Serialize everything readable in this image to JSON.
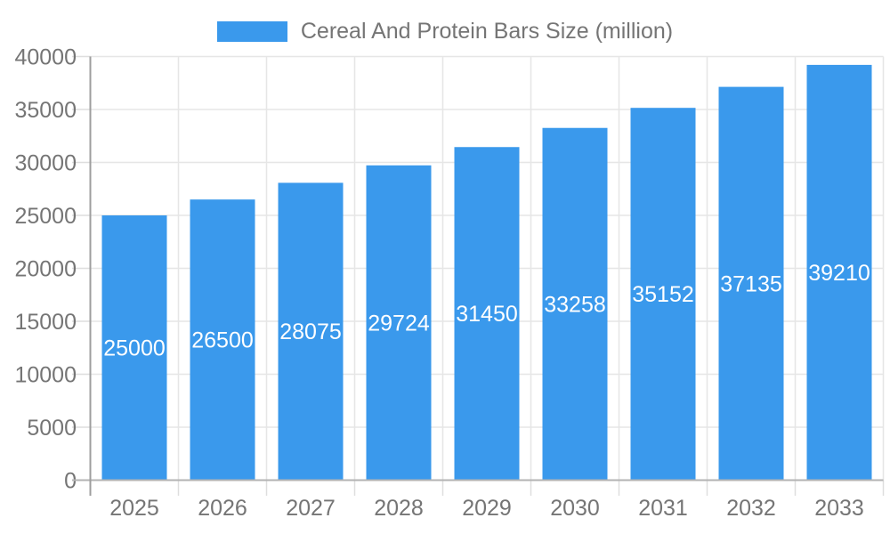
{
  "chart_data": {
    "type": "bar",
    "title": "Cereal And Protein Bars Size (million)",
    "categories": [
      "2025",
      "2026",
      "2027",
      "2028",
      "2029",
      "2030",
      "2031",
      "2032",
      "2033"
    ],
    "series": [
      {
        "name": "Cereal And Protein Bars Size (million)",
        "values": [
          25000,
          26500,
          28075,
          29724,
          31450,
          33258,
          35152,
          37135,
          39210
        ]
      }
    ],
    "xlabel": "",
    "ylabel": "",
    "ylim": [
      0,
      40000
    ],
    "yticks": [
      0,
      5000,
      10000,
      15000,
      20000,
      25000,
      30000,
      35000,
      40000
    ],
    "grid": true,
    "legend_position": "top-center",
    "value_labels": "inside-center",
    "colors": {
      "bar": "#3A99EC",
      "value_label": "#ffffff",
      "axis_text": "#757575",
      "gridline": "#e6e6e6",
      "tick": "#dedede",
      "axis_line": "#9e9e9e",
      "zero_line": "#b3b3b3",
      "background": "#ffffff"
    }
  }
}
